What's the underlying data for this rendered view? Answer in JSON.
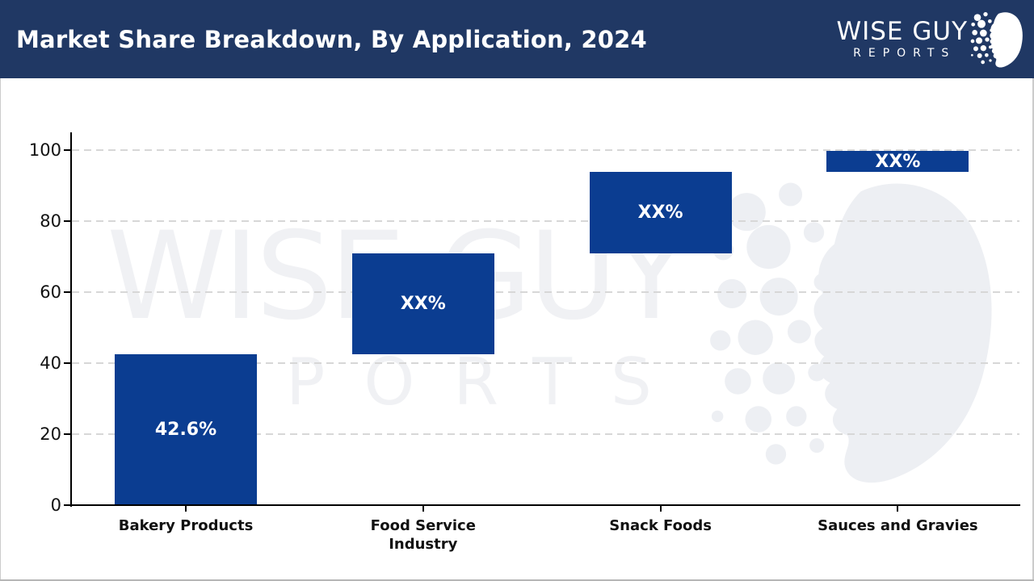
{
  "header": {
    "title": "Market Share Breakdown, By Application, 2024",
    "logo": {
      "primary": "WISE GUY",
      "secondary": "REPORTS"
    }
  },
  "watermark": {
    "primary": "WISE GUY",
    "secondary": "REPORTS"
  },
  "chart_data": {
    "type": "bar",
    "subtype": "waterfall",
    "title": "Market Share Breakdown, By Application, 2024",
    "xlabel": "",
    "ylabel": "",
    "categories": [
      "Bakery Products",
      "Food Service\nIndustry",
      "Snack Foods",
      "Sauces and Gravies"
    ],
    "segments": [
      {
        "name": "Bakery Products",
        "start": 0,
        "end": 42.6,
        "label": "42.6%"
      },
      {
        "name": "Food Service Industry",
        "start": 42.6,
        "end": 71.0,
        "label": "XX%"
      },
      {
        "name": "Snack Foods",
        "start": 71.0,
        "end": 93.8,
        "label": "XX%"
      },
      {
        "name": "Sauces and Gravies",
        "start": 93.8,
        "end": 99.7,
        "label": "XX%"
      }
    ],
    "y_ticks": [
      0,
      20,
      40,
      60,
      80,
      100
    ],
    "ylim": [
      0,
      105
    ],
    "grid": "horizontal-dashed",
    "legend": null,
    "colors": {
      "header_bg": "#203864",
      "bar": "#0b3d91",
      "bar_label": "#ffffff",
      "gridline": "#d7d7d7",
      "axis": "#000000",
      "watermark": "#f0f1f4"
    }
  }
}
